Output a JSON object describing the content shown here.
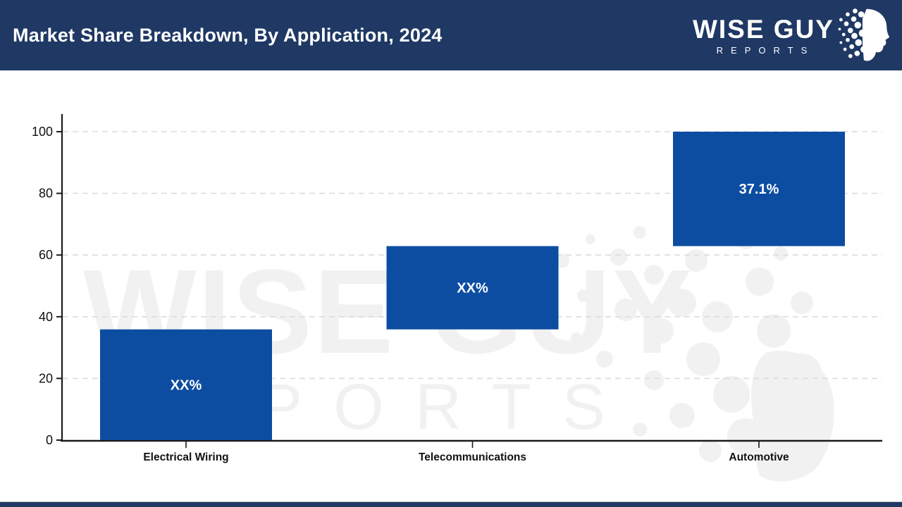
{
  "header": {
    "title": "Market Share Breakdown, By Application, 2024"
  },
  "brand": {
    "name": "WISE GUY",
    "tagline": "REPORTS"
  },
  "watermark": {
    "line1": "WISE GUY",
    "line2": "REPORTS"
  },
  "colors": {
    "header_bg": "#1f3864",
    "bar": "#0c4da2",
    "grid": "#dcdcdc",
    "axis": "#1a1a1a",
    "tick_text": "#111111",
    "bar_label_text": "#ffffff",
    "watermark": "#f1f1f1"
  },
  "chart_data": {
    "type": "bar",
    "subtype": "waterfall",
    "title": "Market Share Breakdown, By Application, 2024",
    "categories": [
      "Electrical Wiring",
      "Telecommunications",
      "Automotive"
    ],
    "segments": [
      {
        "category": "Electrical Wiring",
        "start": 0,
        "end": 35.9,
        "label": "XX%"
      },
      {
        "category": "Telecommunications",
        "start": 35.9,
        "end": 62.9,
        "label": "XX%"
      },
      {
        "category": "Automotive",
        "start": 62.9,
        "end": 100,
        "label": "37.1%"
      }
    ],
    "yticks": [
      0,
      20,
      40,
      60,
      80,
      100
    ],
    "ylim": [
      0,
      105
    ],
    "xlabel": "",
    "ylabel": "",
    "grid": "horizontal-dashed",
    "legend": "none"
  }
}
